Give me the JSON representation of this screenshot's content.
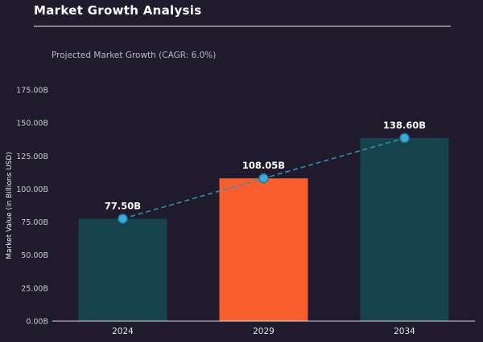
{
  "header": {
    "title": "Market Growth Analysis",
    "subtitle": "Projected Market Growth (CAGR: 6.0%)"
  },
  "chart_data": {
    "type": "bar",
    "title": "Market Growth Analysis",
    "subtitle": "Projected Market Growth (CAGR: 6.0%)",
    "categories": [
      "2024",
      "2029",
      "2034"
    ],
    "values": [
      77.5,
      108.05,
      138.6
    ],
    "value_labels": [
      "77.50B",
      "108.05B",
      "138.60B"
    ],
    "xlabel": "",
    "ylabel": "Market Value (in Billions USD)",
    "ylim": [
      0,
      175
    ],
    "ytick_step": 25,
    "ytick_labels": [
      "0.00B",
      "25.00B",
      "50.00B",
      "75.00B",
      "100.00B",
      "125.00B",
      "150.00B",
      "175.00B"
    ],
    "grid": false,
    "legend": "none",
    "bar_colors": [
      "#17434f",
      "#fa5e2f",
      "#17434f"
    ],
    "trend_line": {
      "style": "dashed",
      "color": "#2d93ad",
      "marker_color": "#41aadc",
      "marker_stroke": "#1c7c9c"
    },
    "colors": {
      "background": "#1f1b2d",
      "text": "#ffffff",
      "muted_text": "#b9b9c3",
      "axis": "#dcdce2"
    }
  }
}
